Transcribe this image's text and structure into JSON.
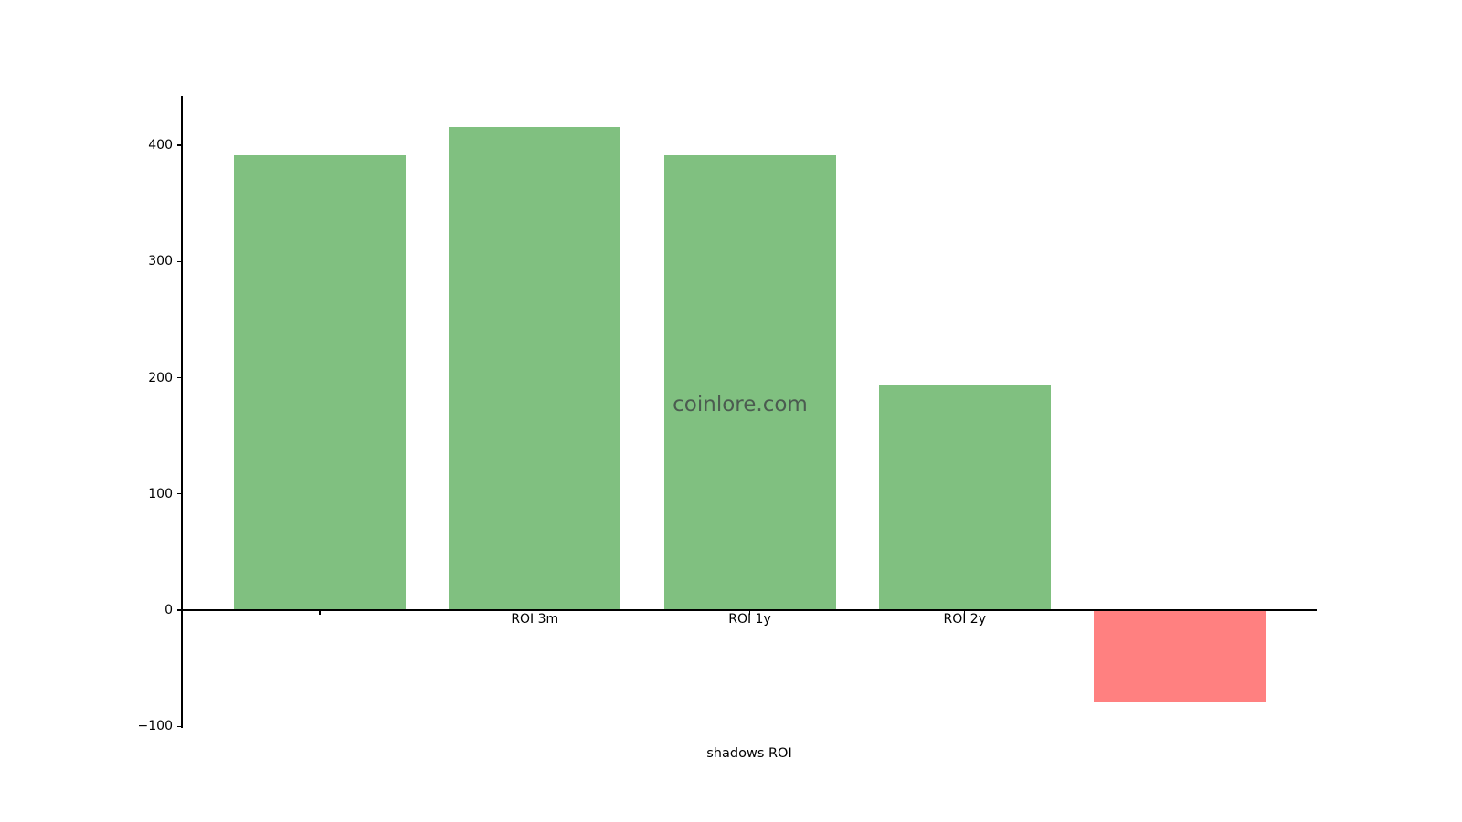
{
  "chart_data": {
    "type": "bar",
    "title": "",
    "xlabel": "shadows ROI",
    "ylabel": "",
    "watermark": "coinlore.com",
    "categories": [
      "",
      "ROI 3m",
      "ROI 1y",
      "ROI 2y",
      ""
    ],
    "values": [
      391,
      416,
      391,
      193,
      -79
    ],
    "bar_colors": [
      "#80c080",
      "#80c080",
      "#80c080",
      "#80c080",
      "#ff8080"
    ],
    "positive_color": "#80c080",
    "negative_color": "#ff8080",
    "axis_color": "#000000",
    "background_color": "#ffffff",
    "watermark_color": "#4b5b50",
    "yticks": [
      {
        "value": 400,
        "label": "400"
      },
      {
        "value": 300,
        "label": "300"
      },
      {
        "value": 200,
        "label": "200"
      },
      {
        "value": 100,
        "label": "100"
      },
      {
        "value": 0,
        "label": "0"
      },
      {
        "value": -100,
        "label": "−100"
      }
    ],
    "ylim": [
      -101,
      442
    ],
    "grid": false,
    "legend": null
  }
}
